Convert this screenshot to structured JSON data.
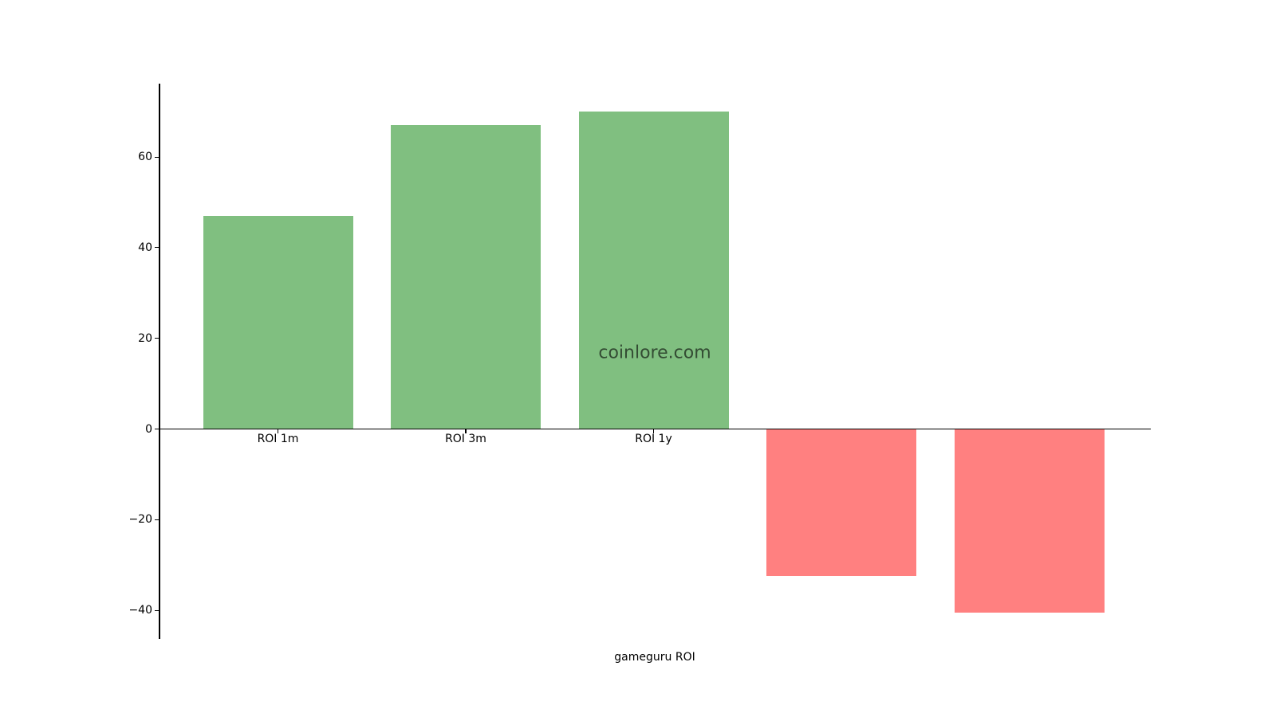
{
  "chart_data": {
    "type": "bar",
    "title": "",
    "xlabel": "gameguru ROI",
    "ylabel": "",
    "watermark": "coinlore.com",
    "categories": [
      "ROI 1m",
      "ROI 3m",
      "ROI 1y",
      "",
      ""
    ],
    "values": [
      47,
      67,
      70,
      -32.5,
      -40.5
    ],
    "bar_colors": [
      "#80bf80",
      "#80bf80",
      "#80bf80",
      "#ff8080",
      "#ff8080"
    ],
    "positive_color": "#80bf80",
    "negative_color": "#ff8080",
    "yticks": [
      60,
      40,
      20,
      0,
      -20,
      -40
    ],
    "ytick_labels": [
      "60",
      "40",
      "20",
      "0",
      "−20",
      "−40"
    ],
    "ylim": [
      -46.5,
      76.5
    ],
    "grid": false,
    "legend_position": "none",
    "axis_color": "#000000",
    "watermark_color": "rgba(0,0,0,0.6)"
  }
}
